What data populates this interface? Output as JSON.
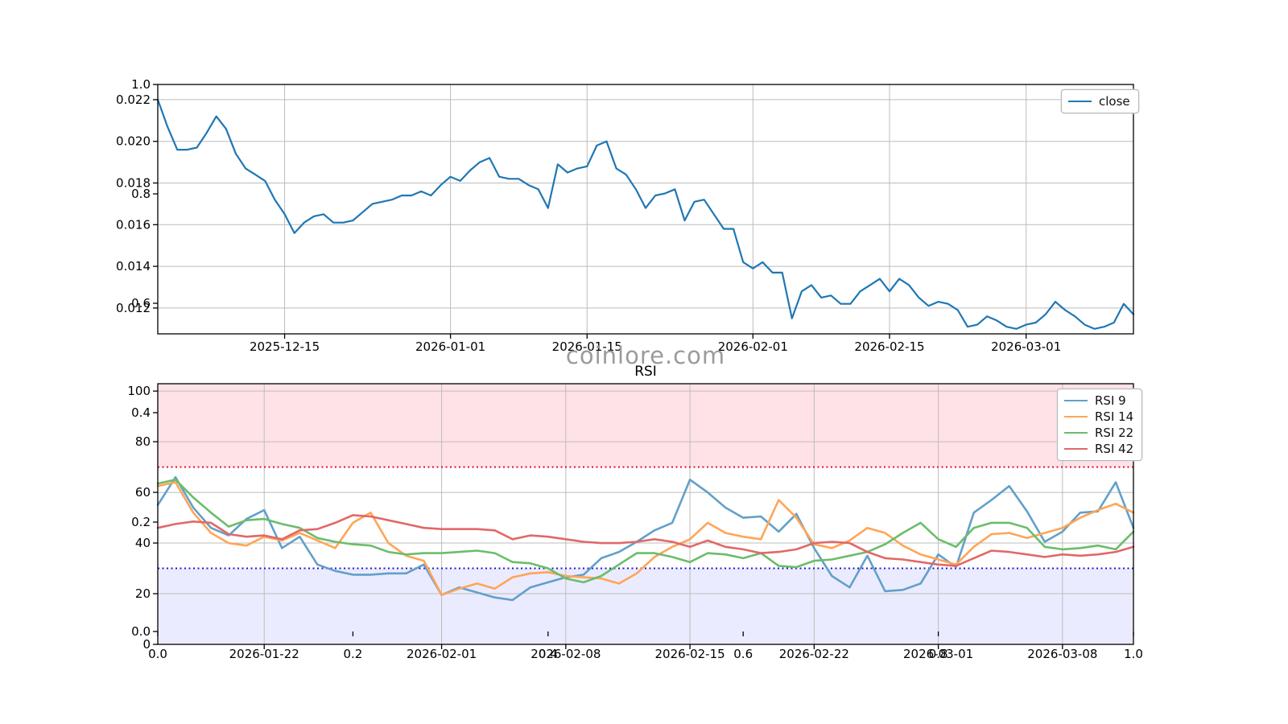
{
  "watermark": "coinlore.com",
  "colors": {
    "grid": "#bcbcbc",
    "frame": "#000000",
    "tick_text": "#000000",
    "close_line": "#1f77b4",
    "rsi9": "#62a0ca",
    "rsi14": "#ffa556",
    "rsi22": "#6bbd6b",
    "rsi42": "#e26868",
    "overbought_dotted_line": "#e01030",
    "oversold_dotted_line": "#1a1acc",
    "overbought_band": "rgba(255,20,60,0.12)",
    "oversold_band": "rgba(60,60,255,0.10)",
    "watermark_color": "#9b9b9b"
  },
  "overlay_axis": {
    "left_labels": [
      "1.0",
      "0.8",
      "0.6",
      "0.4",
      "0.2",
      "0.0"
    ],
    "bottom_labels": [
      "0.0",
      "0.2",
      "0.4",
      "0.6",
      "0.8",
      "1.0"
    ]
  },
  "chart_data": [
    {
      "type": "line",
      "name": "price",
      "title": "",
      "ylabel": "",
      "ylim": [
        0.01076,
        0.02273
      ],
      "grid": true,
      "legend_position": "upper right",
      "yticks": [
        {
          "v": 0.012,
          "label": "0.012"
        },
        {
          "v": 0.014,
          "label": "0.014"
        },
        {
          "v": 0.016,
          "label": "0.016"
        },
        {
          "v": 0.018,
          "label": "0.018"
        },
        {
          "v": 0.02,
          "label": "0.020"
        },
        {
          "v": 0.022,
          "label": "0.022"
        }
      ],
      "xticks": [
        {
          "i": 13,
          "label": "2025-12-15"
        },
        {
          "i": 30,
          "label": "2026-01-01"
        },
        {
          "i": 44,
          "label": "2026-01-15"
        },
        {
          "i": 61,
          "label": "2026-02-01"
        },
        {
          "i": 75,
          "label": "2026-02-15"
        },
        {
          "i": 89,
          "label": "2026-03-01"
        }
      ],
      "series": [
        {
          "name": "close",
          "color": "#1f77b4",
          "width": 2.2,
          "values": [
            0.022,
            0.0207,
            0.0196,
            0.0196,
            0.0197,
            0.0204,
            0.0212,
            0.0206,
            0.0194,
            0.0187,
            0.0184,
            0.0181,
            0.0172,
            0.0165,
            0.0156,
            0.0161,
            0.0164,
            0.0165,
            0.0161,
            0.0161,
            0.0162,
            0.0166,
            0.017,
            0.0171,
            0.0172,
            0.0174,
            0.0174,
            0.0176,
            0.0174,
            0.0179,
            0.0183,
            0.0181,
            0.0186,
            0.019,
            0.0192,
            0.0183,
            0.0182,
            0.0182,
            0.0179,
            0.0177,
            0.0168,
            0.0189,
            0.0185,
            0.0187,
            0.0188,
            0.0198,
            0.02,
            0.0187,
            0.0184,
            0.0177,
            0.0168,
            0.0174,
            0.0175,
            0.0177,
            0.0162,
            0.0171,
            0.0172,
            0.0165,
            0.0158,
            0.0158,
            0.0142,
            0.0139,
            0.0142,
            0.0137,
            0.0137,
            0.0115,
            0.0128,
            0.0131,
            0.0125,
            0.0126,
            0.0122,
            0.0122,
            0.0128,
            0.0131,
            0.0134,
            0.0128,
            0.0134,
            0.0131,
            0.0125,
            0.0121,
            0.0123,
            0.0122,
            0.0119,
            0.0111,
            0.0112,
            0.0116,
            0.0114,
            0.0111,
            0.011,
            0.0112,
            0.0113,
            0.0117,
            0.0123,
            0.0119,
            0.0116,
            0.0112,
            0.011,
            0.0111,
            0.0113,
            0.0122,
            0.0117
          ]
        }
      ]
    },
    {
      "type": "line",
      "name": "rsi",
      "title": "RSI",
      "ylim": [
        0,
        102.9
      ],
      "grid": true,
      "legend_position": "upper right",
      "yticks": [
        {
          "v": 0,
          "label": "0"
        },
        {
          "v": 20,
          "label": "20"
        },
        {
          "v": 40,
          "label": "40"
        },
        {
          "v": 60,
          "label": "60"
        },
        {
          "v": 80,
          "label": "80"
        },
        {
          "v": 100,
          "label": "100"
        }
      ],
      "xticks": [
        {
          "i": 6,
          "label": "2026-01-22"
        },
        {
          "i": 16,
          "label": "2026-02-01"
        },
        {
          "i": 23,
          "label": "2026-02-08"
        },
        {
          "i": 30,
          "label": "2026-02-15"
        },
        {
          "i": 37,
          "label": "2026-02-22"
        },
        {
          "i": 44,
          "label": "2026-03-01"
        },
        {
          "i": 51,
          "label": "2026-03-08"
        }
      ],
      "bands": [
        {
          "from": 70,
          "to": 102.9,
          "color": "rgba(255,20,60,0.12)",
          "meaning": "overbought"
        },
        {
          "from": 0,
          "to": 30,
          "color": "rgba(60,60,255,0.10)",
          "meaning": "oversold"
        }
      ],
      "hlines": [
        {
          "value": 70,
          "color": "#e01030",
          "style": "dotted"
        },
        {
          "value": 30,
          "color": "#1a1acc",
          "style": "dotted"
        }
      ],
      "series": [
        {
          "name": "RSI 9",
          "color": "#62a0ca",
          "width": 2.6,
          "values": [
            55,
            66,
            54,
            46,
            43,
            49.5,
            53,
            38,
            42.5,
            31.5,
            29,
            27.5,
            27.5,
            28,
            28,
            31.5,
            19.5,
            22.5,
            20.5,
            18.5,
            17.5,
            22.5,
            24.5,
            26.5,
            27.5,
            34,
            36.5,
            40.5,
            45,
            48,
            65,
            60,
            54,
            50,
            50.5,
            44.5,
            51.5,
            38,
            27,
            22.5,
            35,
            21,
            21.5,
            24,
            35.5,
            30.5,
            52,
            57,
            62.5,
            52.5,
            40.5,
            44.5,
            52,
            52.5,
            64,
            46
          ]
        },
        {
          "name": "RSI 14",
          "color": "#ffa556",
          "width": 2.6,
          "values": [
            62.5,
            64,
            52,
            44,
            40,
            39,
            42.5,
            41,
            44,
            41,
            38,
            48,
            52,
            40,
            35,
            33,
            19.5,
            22,
            24,
            22,
            26.5,
            28,
            28.5,
            27,
            26.5,
            26,
            24,
            28,
            34.5,
            38.5,
            41.5,
            48,
            44,
            42.5,
            41.5,
            57,
            50,
            39.5,
            38,
            41,
            46,
            44,
            39,
            35.5,
            33.5,
            31.5,
            38.5,
            43.5,
            44,
            42,
            44,
            46,
            50,
            53,
            55.5,
            52
          ]
        },
        {
          "name": "RSI 22",
          "color": "#6bbd6b",
          "width": 2.6,
          "values": [
            63.5,
            65,
            58,
            52,
            46.5,
            49,
            49.5,
            47.5,
            46,
            42,
            40.5,
            39.5,
            39,
            36.5,
            35.5,
            36,
            36,
            36.5,
            37,
            36,
            32.5,
            32,
            30,
            26,
            24.5,
            27,
            31.5,
            36,
            36,
            34.5,
            32.5,
            36,
            35.5,
            34,
            36,
            31,
            30.5,
            33,
            33.5,
            35,
            36.5,
            39.5,
            44,
            48,
            41.5,
            38.5,
            46,
            48,
            48,
            46,
            38.5,
            37.5,
            38,
            39,
            37.5,
            44.5
          ]
        },
        {
          "name": "RSI 42",
          "color": "#e26868",
          "width": 2.6,
          "values": [
            46,
            47.5,
            48.5,
            48,
            43.5,
            42.5,
            43,
            41.5,
            45,
            45.5,
            48,
            51,
            50.5,
            49,
            47.5,
            46,
            45.5,
            45.5,
            45.5,
            45,
            41.5,
            43,
            42.5,
            41.5,
            40.5,
            40,
            40,
            40.5,
            41.5,
            40.5,
            38.5,
            41,
            38.5,
            37.5,
            36,
            36.5,
            37.5,
            40,
            40.5,
            40,
            36.5,
            34,
            33.5,
            32.5,
            31.5,
            31,
            34,
            37,
            36.5,
            35.5,
            34.5,
            35.5,
            35,
            35.5,
            36.5,
            38.5
          ]
        }
      ]
    }
  ]
}
